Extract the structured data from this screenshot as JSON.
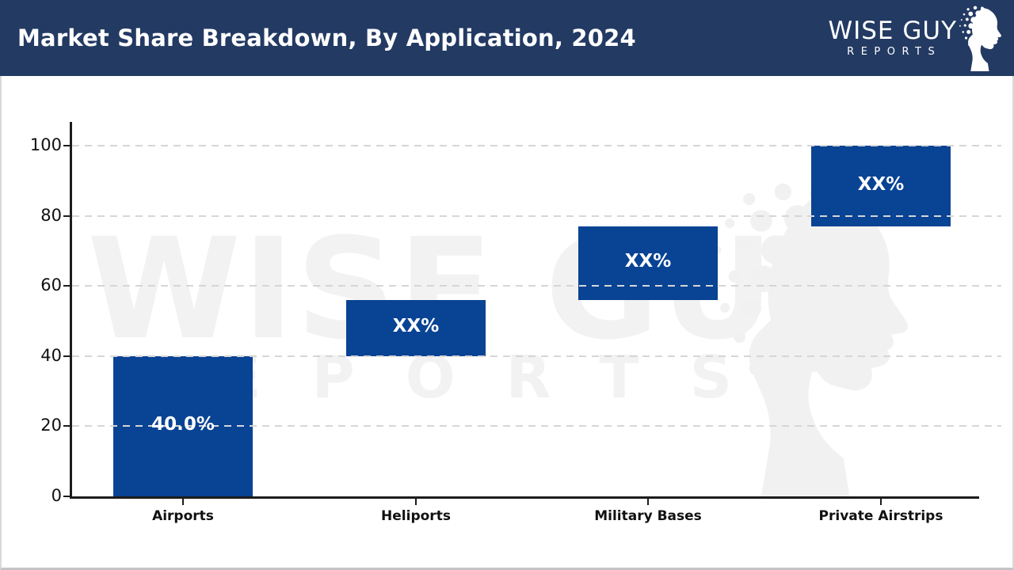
{
  "header": {
    "title": "Market Share Breakdown, By Application, 2024",
    "logo": {
      "line1": "WISE GUY",
      "line2": "REPORTS"
    }
  },
  "watermark": {
    "line1": "WISE GUY",
    "line2": "REPORTS"
  },
  "chart_data": {
    "type": "bar",
    "subtype": "waterfall",
    "title": "Market Share Breakdown, By Application, 2024",
    "categories": [
      "Airports",
      "Heliports",
      "Military Bases",
      "Private Airstrips"
    ],
    "segments": [
      {
        "label": "Airports",
        "start": 0,
        "end": 40,
        "value_label": "40.0%"
      },
      {
        "label": "Heliports",
        "start": 40,
        "end": 56,
        "value_label": "XX%"
      },
      {
        "label": "Military Bases",
        "start": 56,
        "end": 77,
        "value_label": "XX%"
      },
      {
        "label": "Private Airstrips",
        "start": 77,
        "end": 100,
        "value_label": "XX%"
      }
    ],
    "xlabel": "",
    "ylabel": "",
    "ylim": [
      0,
      100
    ],
    "yticks": [
      0,
      20,
      40,
      60,
      80,
      100
    ],
    "grid": "horizontal-dashed",
    "legend": "none"
  },
  "colors": {
    "header_bg": "#233a63",
    "bar": "#084394",
    "bar_label": "#ffffff",
    "axis": "#1c1c1c",
    "gridline": "#d6d6d6",
    "watermark": "#f2f2f2"
  }
}
